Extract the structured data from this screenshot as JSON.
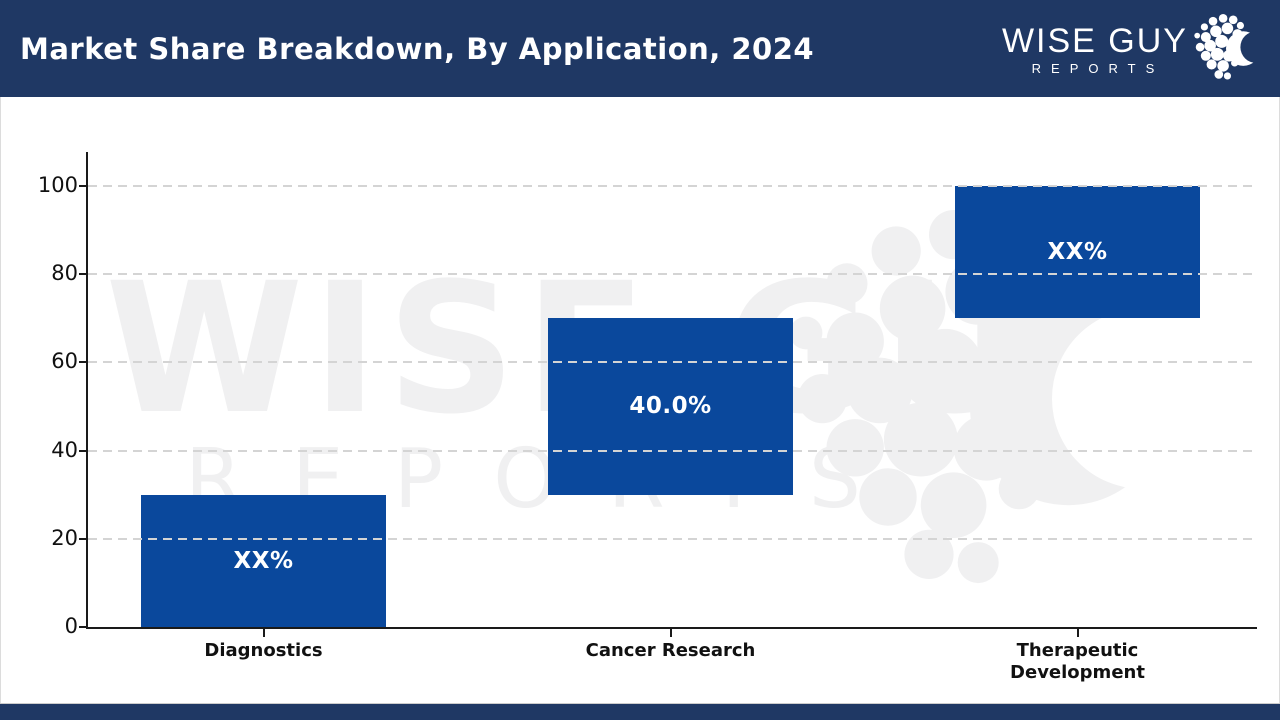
{
  "header": {
    "title": "Market Share Breakdown, By Application, 2024",
    "background_color": "#1F3864",
    "logo": {
      "line1": "WISE GUY",
      "line2": "REPORTS"
    }
  },
  "watermark": {
    "line1": "WISE GUY",
    "line2": "REPORTS"
  },
  "footer": {
    "background_color": "#1F3864"
  },
  "chart_data": {
    "type": "bar",
    "subtype": "waterfall",
    "title": "Market Share Breakdown, By Application, 2024",
    "categories": [
      "Diagnostics",
      "Cancer Research",
      "Therapeutic Development"
    ],
    "segments": [
      {
        "category": "Diagnostics",
        "start": 0,
        "end": 30,
        "label": "XX%"
      },
      {
        "category": "Cancer Research",
        "start": 30,
        "end": 70,
        "label": "40.0%"
      },
      {
        "category": "Therapeutic Development",
        "start": 70,
        "end": 100,
        "label": "XX%"
      }
    ],
    "values": [
      30,
      40,
      30
    ],
    "xlabel": "",
    "ylabel": "",
    "ylim": [
      0,
      105
    ],
    "yticks": [
      0,
      20,
      40,
      60,
      80,
      100
    ],
    "grid": "horizontal-dashed",
    "bar_color": "#0A489C",
    "bar_label_color": "#ffffff",
    "axis_color": "#1a1a1a",
    "gridline_color": "#d4d4d4"
  }
}
